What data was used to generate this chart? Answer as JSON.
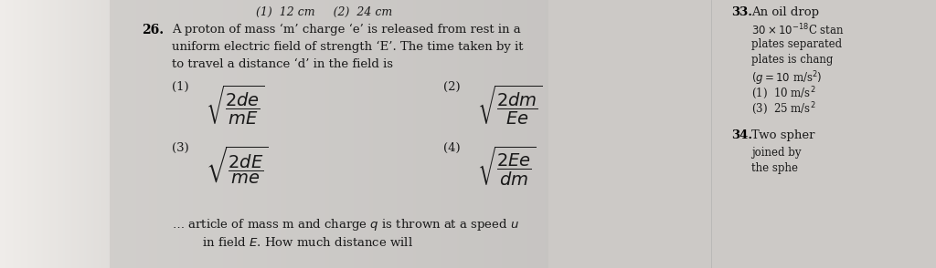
{
  "bg_color_left": "#e8e5e0",
  "bg_color_center": "#ccc9c4",
  "bg_color_right": "#c8c5c0",
  "fig_width": 10.24,
  "fig_height": 2.94,
  "dpi": 100,
  "text_color": "#1a1a1a",
  "top_line": "(1)  12 cm     (2)  24 cm",
  "q26_num": "26.",
  "q26_line1": "A proton of mass ‘m’ charge ‘e’ is released from rest in a",
  "q26_line2": "uniform electric field of strength ‘E’. The time taken by it",
  "q26_line3": "to travel a distance ‘d’ in the field is",
  "opt1": "(1)",
  "opt2": "(2)",
  "opt3": "(3)",
  "opt4": "(4)",
  "formula1": "$\\sqrt{\\dfrac{2de}{mE}}$",
  "formula2": "$\\sqrt{\\dfrac{2dm}{Ee}}$",
  "formula3": "$\\sqrt{\\dfrac{2dE}{me}}$",
  "formula4": "$\\sqrt{\\dfrac{2Ee}{dm}}$",
  "bottom1": "article of mass m and charge $q$ is thrown at a speed $u$",
  "bottom2": "in field $E$. How much distance will",
  "q33_num": "33.",
  "q33_line1": "An oil drop",
  "q33_line2": "$30 \\times10^{-18}$C stan",
  "q33_line3": "plates separated",
  "q33_line4": "plates is chang",
  "q33_line5": "$(g = 10$ m/s$^{2})$",
  "q33_line6": "(1)  10 m/s$^{2}$",
  "q33_line7": "(3)  25 m/s$^{2}$",
  "q34_num": "34.",
  "q34_line1": "Two spher",
  "q34_line2": "joined by",
  "q34_line3": "the sphe"
}
